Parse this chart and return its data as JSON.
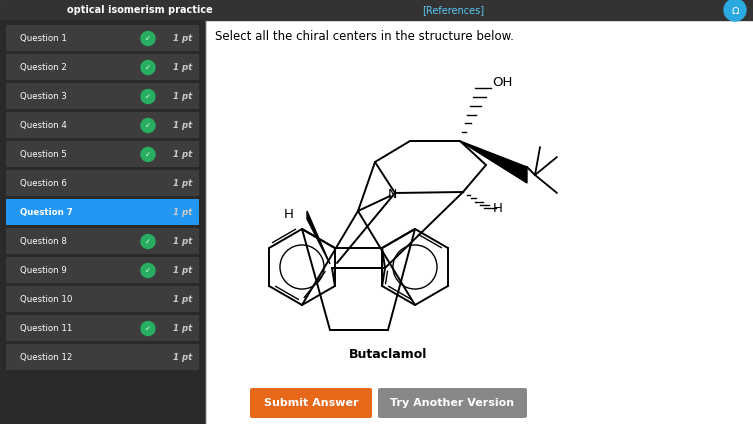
{
  "title": "optical isomerism practice",
  "references_text": "[References]",
  "question_text": "Select all the chiral centers in the structure below.",
  "molecule_name": "Butaclamol",
  "sidebar_bg": "#2a2a2a",
  "sidebar_highlight": "#2196f3",
  "sidebar_items": [
    {
      "label": "Question 1",
      "has_check": true,
      "pt": "1 pt",
      "highlighted": false
    },
    {
      "label": "Question 2",
      "has_check": true,
      "pt": "1 pt",
      "highlighted": false
    },
    {
      "label": "Question 3",
      "has_check": true,
      "pt": "1 pt",
      "highlighted": false
    },
    {
      "label": "Question 4",
      "has_check": true,
      "pt": "1 pt",
      "highlighted": false
    },
    {
      "label": "Question 5",
      "has_check": true,
      "pt": "1 pt",
      "highlighted": false
    },
    {
      "label": "Question 6",
      "has_check": false,
      "pt": "1 pt",
      "highlighted": false
    },
    {
      "label": "Question 7",
      "has_check": false,
      "pt": "1 pt",
      "highlighted": true
    },
    {
      "label": "Question 8",
      "has_check": true,
      "pt": "1 pt",
      "highlighted": false
    },
    {
      "label": "Question 9",
      "has_check": true,
      "pt": "1 pt",
      "highlighted": false
    },
    {
      "label": "Question 10",
      "has_check": false,
      "pt": "1 pt",
      "highlighted": false
    },
    {
      "label": "Question 11",
      "has_check": true,
      "pt": "1 pt",
      "highlighted": false
    },
    {
      "label": "Question 12",
      "has_check": false,
      "pt": "1 pt",
      "highlighted": false
    }
  ],
  "submit_btn_color": "#e8681a",
  "submit_btn_text": "Submit Answer",
  "try_btn_color": "#888888",
  "try_btn_text": "Try Another Version",
  "main_bg": "#ffffff",
  "top_bar_bg": "#333333",
  "header_link_color": "#5bc8f5",
  "icon_color": "#29abe2"
}
